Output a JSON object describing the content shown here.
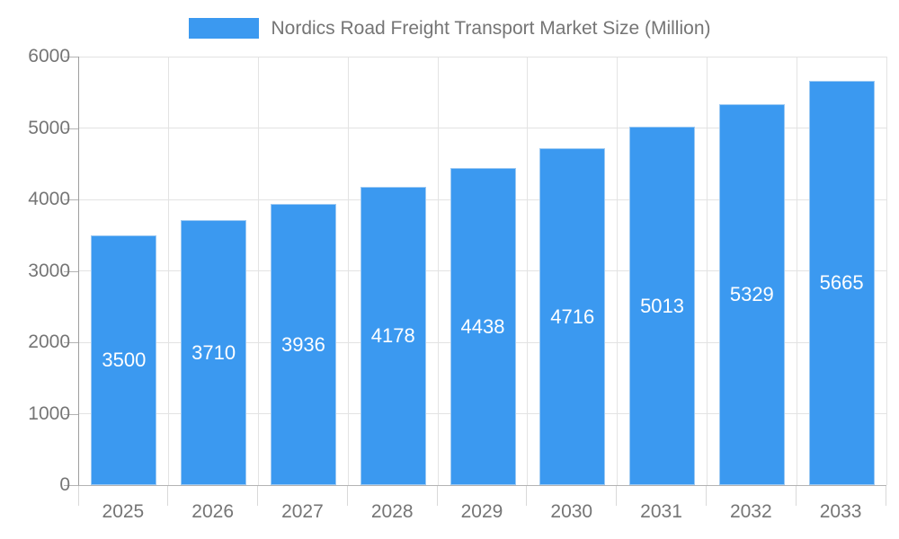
{
  "chart_data": {
    "type": "bar",
    "title": "Nordics Road Freight Transport Market Size (Million)",
    "legend": {
      "position": "top-center",
      "entries": [
        "Nordics Road Freight Transport Market Size (Million)"
      ]
    },
    "categories": [
      "2025",
      "2026",
      "2027",
      "2028",
      "2029",
      "2030",
      "2031",
      "2032",
      "2033"
    ],
    "series": [
      {
        "name": "Nordics Road Freight Transport Market Size (Million)",
        "values": [
          3500,
          3710,
          3936,
          4178,
          4438,
          4716,
          5013,
          5329,
          5665
        ]
      }
    ],
    "values": [
      3500,
      3710,
      3936,
      4178,
      4438,
      4716,
      5013,
      5329,
      5665
    ],
    "data_labels_shown": true,
    "data_label_placement": "inside-center",
    "xlabel": "",
    "ylabel": "",
    "ylim": [
      0,
      6000
    ],
    "yticks": [
      0,
      1000,
      2000,
      3000,
      4000,
      5000,
      6000
    ],
    "grid": true,
    "colors": {
      "bar": "#3B99F0",
      "bar_border": "#9CC9F3",
      "value_label": "#FFFFFF",
      "axis_text": "#757575",
      "grid_line": "#E3E3E3",
      "axis_line": "#9E9E9E",
      "baseline": "#B3B3B3",
      "x_tick": "#D9D9D9"
    }
  }
}
